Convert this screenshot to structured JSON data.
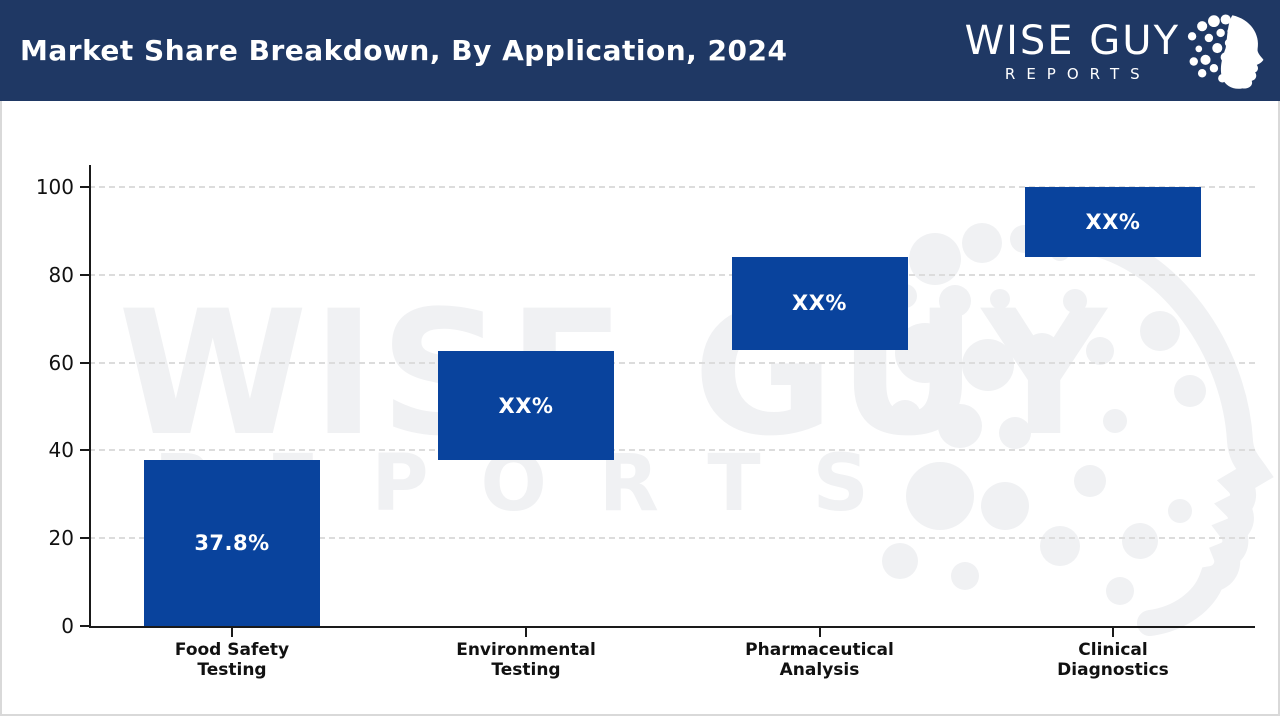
{
  "header": {
    "title": "Market Share Breakdown, By Application, 2024",
    "logo": {
      "name": "WISE GUY",
      "sub": "REPORTS"
    }
  },
  "watermark": {
    "name": "WISE GUY",
    "sub": "REPORTS"
  },
  "chart_data": {
    "type": "bar",
    "variant": "waterfall-floating-bars",
    "title": "Market Share Breakdown, By Application, 2024",
    "categories": [
      [
        "Food Safety",
        "Testing"
      ],
      [
        "Environmental",
        "Testing"
      ],
      [
        "Pharmaceutical",
        "Analysis"
      ],
      [
        "Clinical",
        "Diagnostics"
      ]
    ],
    "bars": [
      {
        "category": "Food Safety Testing",
        "start": 0,
        "end": 37.8,
        "label": "37.8%"
      },
      {
        "category": "Environmental Testing",
        "start": 37.8,
        "end": 62.6,
        "label": "XX%"
      },
      {
        "category": "Pharmaceutical Analysis",
        "start": 62.9,
        "end": 84.1,
        "label": "XX%"
      },
      {
        "category": "Clinical Diagnostics",
        "start": 84.1,
        "end": 100,
        "label": "XX%"
      }
    ],
    "yticks": [
      0,
      20,
      40,
      60,
      80,
      100
    ],
    "ylim": [
      0,
      105
    ],
    "xlabel": "",
    "ylabel": "",
    "grid": "horizontal-dashed",
    "legend": "none",
    "bar_color": "#09439d",
    "value_label_color": "#ffffff"
  },
  "colors": {
    "header_bg": "#1f3864",
    "axis": "#1a1a1a",
    "grid": "#dcdcdc",
    "watermark": "#f0f1f3"
  }
}
